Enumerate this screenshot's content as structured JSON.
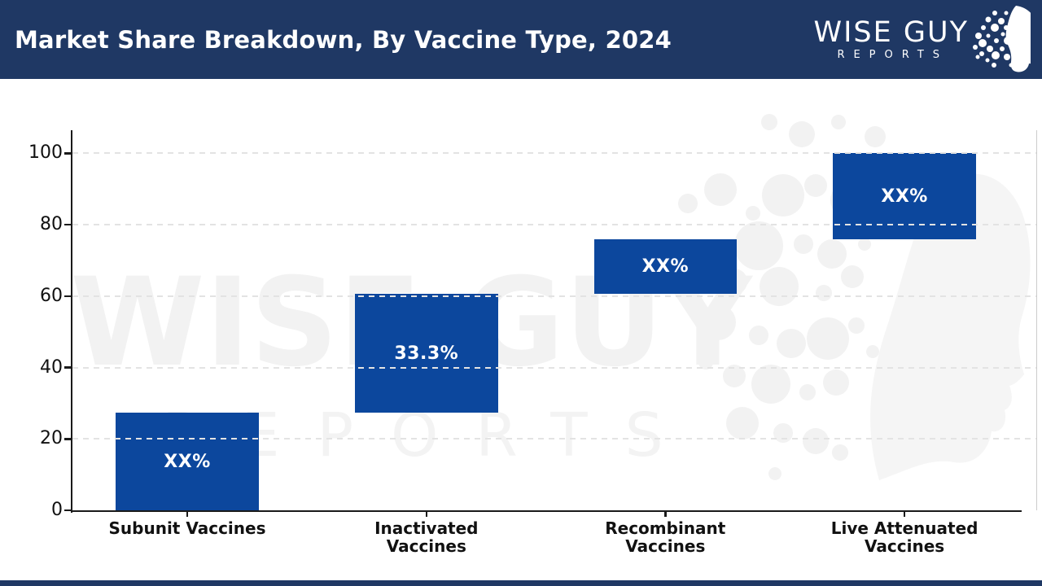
{
  "header": {
    "title": "Market Share Breakdown, By Vaccine Type, 2024",
    "logo": {
      "brand_line1": "WISE GUY",
      "brand_line2": "REPORTS"
    }
  },
  "watermark": {
    "line1": "WISE GUY",
    "line2": "REPORTS"
  },
  "chart_data": {
    "type": "bar",
    "subtype": "waterfall",
    "title": "Market Share Breakdown, By Vaccine Type, 2024",
    "categories": [
      "Subunit Vaccines",
      "Inactivated Vaccines",
      "Recombinant Vaccines",
      "Live Attenuated Vaccines"
    ],
    "category_label_lines": [
      [
        "Subunit Vaccines"
      ],
      [
        "Inactivated",
        "Vaccines"
      ],
      [
        "Recombinant",
        "Vaccines"
      ],
      [
        "Live Attenuated",
        "Vaccines"
      ]
    ],
    "bars": [
      {
        "category": "Subunit Vaccines",
        "start": 0,
        "end": 27.3,
        "label": "XX%"
      },
      {
        "category": "Inactivated Vaccines",
        "start": 27.3,
        "end": 60.6,
        "label": "33.3%"
      },
      {
        "category": "Recombinant Vaccines",
        "start": 60.6,
        "end": 76.0,
        "label": "XX%"
      },
      {
        "category": "Live Attenuated Vaccines",
        "start": 76.0,
        "end": 100.0,
        "label": "XX%"
      }
    ],
    "y_ticks": [
      0,
      20,
      40,
      60,
      80,
      100
    ],
    "ylim": [
      0,
      106
    ],
    "grid": "dashed-horizontal",
    "legend": "none",
    "colors": {
      "header_bg": "#1f3864",
      "bar": "#0c479d",
      "grid": "#e3e3e3",
      "axis": "#1a1a1a",
      "watermark": "#f2f2f2"
    }
  }
}
